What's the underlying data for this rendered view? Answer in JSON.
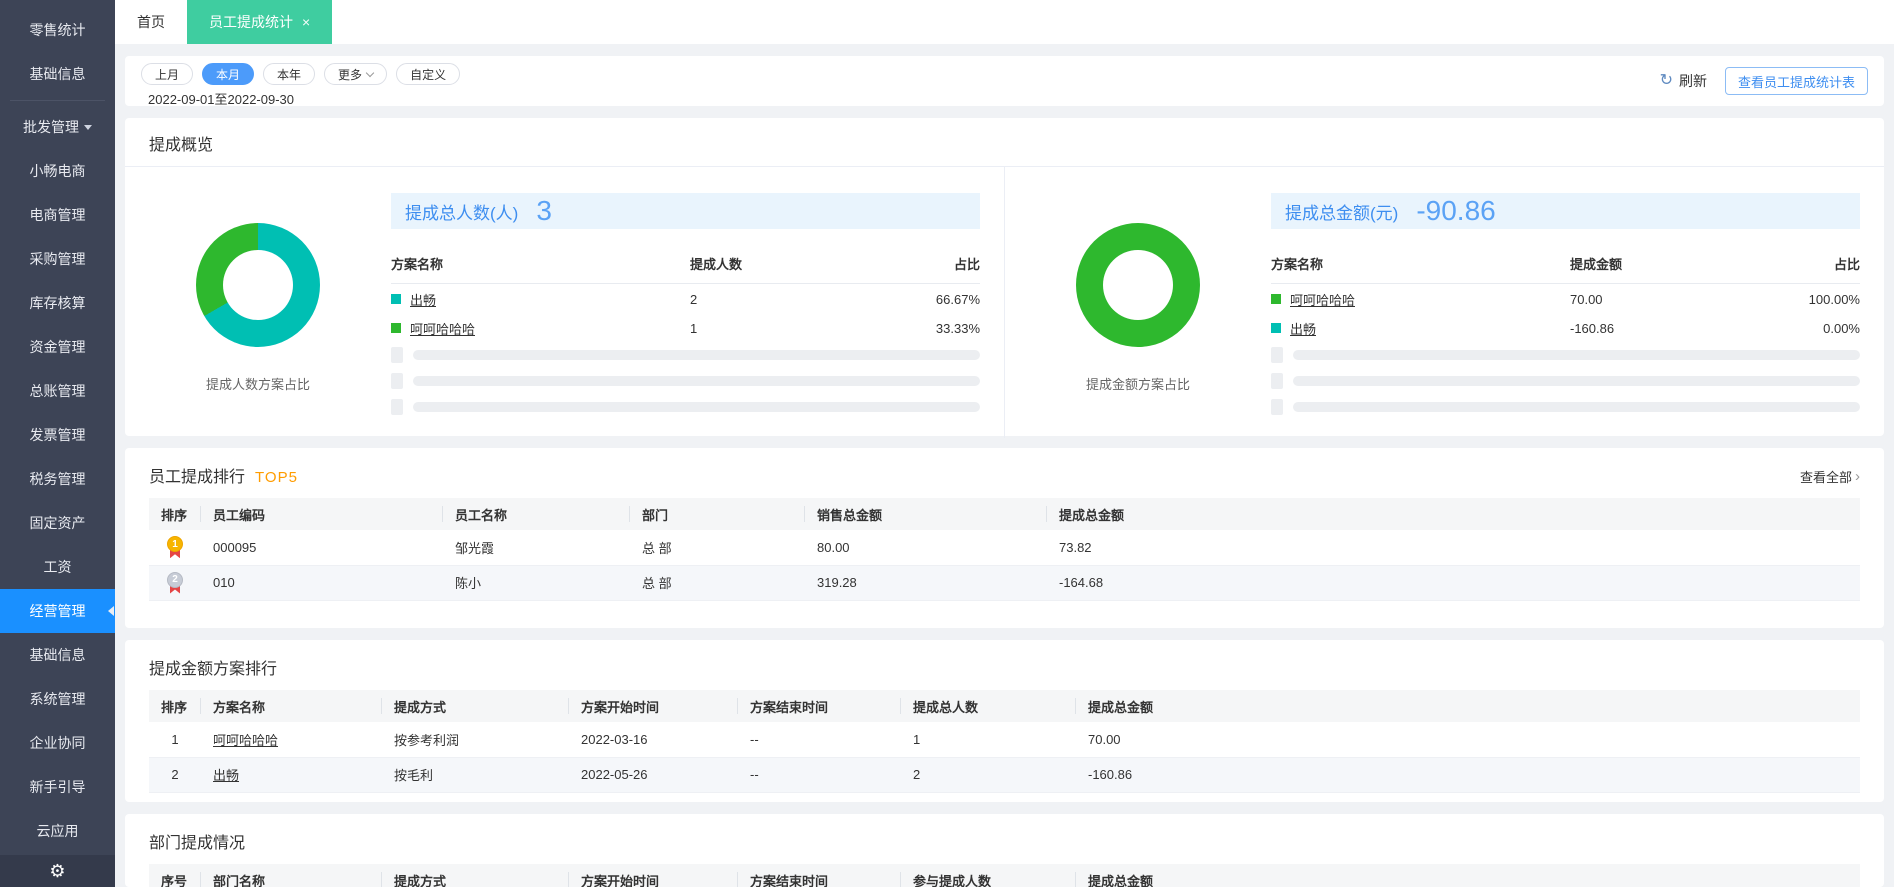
{
  "sidebar": {
    "top_items": [
      {
        "label": "零售统计"
      },
      {
        "label": "基础信息"
      }
    ],
    "items": [
      {
        "label": "批发管理",
        "caret": true
      },
      {
        "label": "小畅电商"
      },
      {
        "label": "电商管理"
      },
      {
        "label": "采购管理"
      },
      {
        "label": "库存核算"
      },
      {
        "label": "资金管理"
      },
      {
        "label": "总账管理"
      },
      {
        "label": "发票管理"
      },
      {
        "label": "税务管理"
      },
      {
        "label": "固定资产"
      },
      {
        "label": "工资"
      },
      {
        "label": "经营管理",
        "active": true
      },
      {
        "label": "基础信息"
      },
      {
        "label": "系统管理"
      },
      {
        "label": "企业协同"
      },
      {
        "label": "新手引导"
      },
      {
        "label": "云应用"
      }
    ],
    "gear_icon": "⚙"
  },
  "tabs": {
    "home_label": "首页",
    "active_label": "员工提成统计",
    "close_glyph": "×"
  },
  "toolbar": {
    "filters": [
      {
        "label": "上月"
      },
      {
        "label": "本月",
        "active": true
      },
      {
        "label": "本年"
      },
      {
        "label": "更多",
        "caret": true
      },
      {
        "label": "自定义"
      }
    ],
    "date_range": "2022-09-01至2022-09-30",
    "refresh_icon": "↻",
    "refresh_label": "刷新",
    "view_report_button": "查看员工提成统计表"
  },
  "overview": {
    "title": "提成概览",
    "left": {
      "stat_label": "提成总人数(人)",
      "stat_value": "3",
      "columns": [
        "方案名称",
        "提成人数",
        "占比"
      ],
      "rows": [
        {
          "name": "出畅",
          "color": "#00BFB3",
          "value": "2",
          "pct": "66.67%"
        },
        {
          "name": "呵呵哈哈哈",
          "color": "#2EB82E",
          "value": "1",
          "pct": "33.33%"
        }
      ],
      "skeleton_rows": 3,
      "caption": "提成人数方案占比"
    },
    "right": {
      "stat_label": "提成总金额(元)",
      "stat_value": "-90.86",
      "columns": [
        "方案名称",
        "提成金额",
        "占比"
      ],
      "rows": [
        {
          "name": "呵呵哈哈哈",
          "color": "#2EB82E",
          "value": "70.00",
          "pct": "100.00%"
        },
        {
          "name": "出畅",
          "color": "#00BFB3",
          "value": "-160.86",
          "pct": "0.00%"
        }
      ],
      "skeleton_rows": 3,
      "caption": "提成金额方案占比"
    }
  },
  "employee_ranking": {
    "title": "员工提成排行",
    "badge": "TOP5",
    "view_all": "查看全部",
    "view_all_arrow": "›",
    "columns": [
      "排序",
      "员工编码",
      "员工名称",
      "部门",
      "销售总金额",
      "提成总金额"
    ],
    "rows": [
      {
        "rank": "1",
        "medal": "gold",
        "code": "000095",
        "name": "邹光霞",
        "dept": "总 部",
        "sales": "80.00",
        "commission": "73.82"
      },
      {
        "rank": "2",
        "medal": "silver",
        "code": "010",
        "name": "陈小",
        "dept": "总 部",
        "sales": "319.28",
        "commission": "-164.68"
      }
    ]
  },
  "plan_ranking": {
    "title": "提成金额方案排行",
    "columns": [
      "排序",
      "方案名称",
      "提成方式",
      "方案开始时间",
      "方案结束时间",
      "提成总人数",
      "提成总金额"
    ],
    "rows": [
      {
        "rank": "1",
        "name": "呵呵哈哈哈",
        "method": "按参考利润",
        "start": "2022-03-16",
        "end": "--",
        "people": "1",
        "amount": "70.00"
      },
      {
        "rank": "2",
        "name": "出畅",
        "method": "按毛利",
        "start": "2022-05-26",
        "end": "--",
        "people": "2",
        "amount": "-160.86"
      }
    ]
  },
  "department": {
    "title": "部门提成情况",
    "columns": [
      "序号",
      "部门名称",
      "提成方式",
      "方案开始时间",
      "方案结束时间",
      "参与提成人数",
      "提成总金额"
    ]
  },
  "colors": {
    "teal": "#00BFB3",
    "green": "#2EB82E",
    "accent_blue": "#3e8ef0",
    "active_tab_green": "#3fcda0",
    "sidebar_active_blue": "#1a90ff",
    "top5_orange": "#ff9c00"
  },
  "chart_data": [
    {
      "type": "pie",
      "title": "提成人数方案占比",
      "labels": [
        "出畅",
        "呵呵哈哈哈"
      ],
      "values": [
        66.67,
        33.33
      ],
      "colors": [
        "#00BFB3",
        "#2EB82E"
      ],
      "donut": true
    },
    {
      "type": "pie",
      "title": "提成金额方案占比",
      "labels": [
        "呵呵哈哈哈",
        "出畅"
      ],
      "values": [
        100.0,
        0.0
      ],
      "colors": [
        "#2EB82E",
        "#00BFB3"
      ],
      "donut": true
    }
  ]
}
